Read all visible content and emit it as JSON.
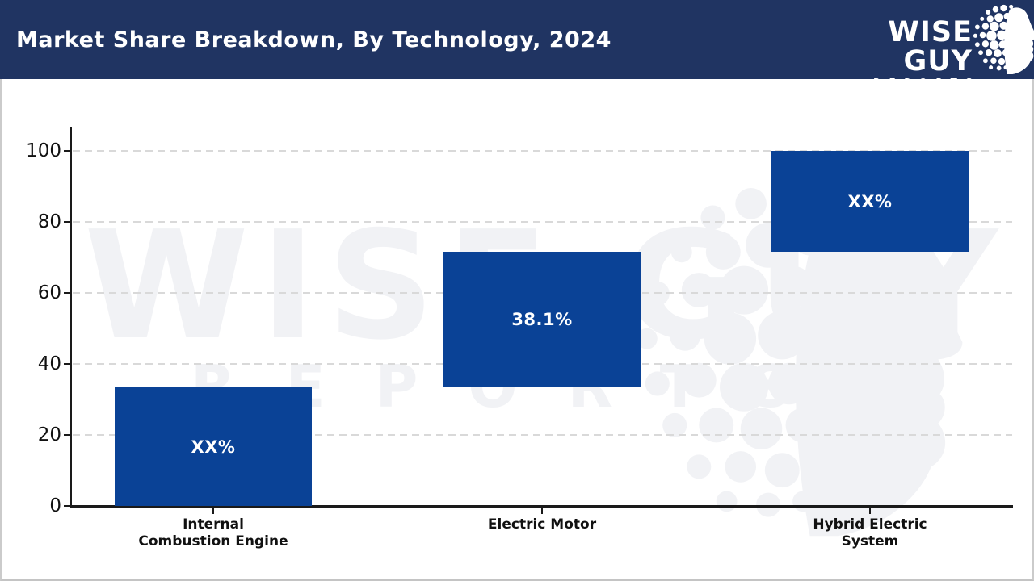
{
  "header": {
    "title": "Market Share Breakdown, By Technology, 2024",
    "logo": {
      "line1": "WISE GUY",
      "line2": "REPORTS"
    }
  },
  "watermark": {
    "line1": "WISE GUY",
    "line2": "REPORTS"
  },
  "chart_data": {
    "type": "bar",
    "subtype": "waterfall",
    "title": "Market Share Breakdown, By Technology, 2024",
    "categories": [
      "Internal Combustion Engine",
      "Electric Motor",
      "Hybrid Electric System"
    ],
    "category_lines": [
      [
        "Internal",
        "Combustion Engine"
      ],
      [
        "Electric Motor"
      ],
      [
        "Hybrid Electric",
        "System"
      ]
    ],
    "segments": [
      {
        "category": "Internal Combustion Engine",
        "start": 0,
        "end": 33.4,
        "value": 33.4,
        "label": "XX%"
      },
      {
        "category": "Electric Motor",
        "start": 33.4,
        "end": 71.5,
        "value": 38.1,
        "label": "38.1%"
      },
      {
        "category": "Hybrid Electric System",
        "start": 71.5,
        "end": 100,
        "value": 28.5,
        "label": "XX%"
      }
    ],
    "yticks": [
      0,
      20,
      40,
      60,
      80,
      100
    ],
    "ylim": [
      0,
      100
    ],
    "grid": "horizontal-dashed",
    "legend": "none",
    "bar_color": "#0a4296",
    "bar_label_color": "#ffffff",
    "axis_color": "#1a1a1a",
    "gridline_color": "#d9d9d9"
  },
  "colors": {
    "header_bg": "#203462",
    "header_text": "#ffffff",
    "watermark": "#f1f2f5",
    "frame_border": "#c9c9c9"
  }
}
